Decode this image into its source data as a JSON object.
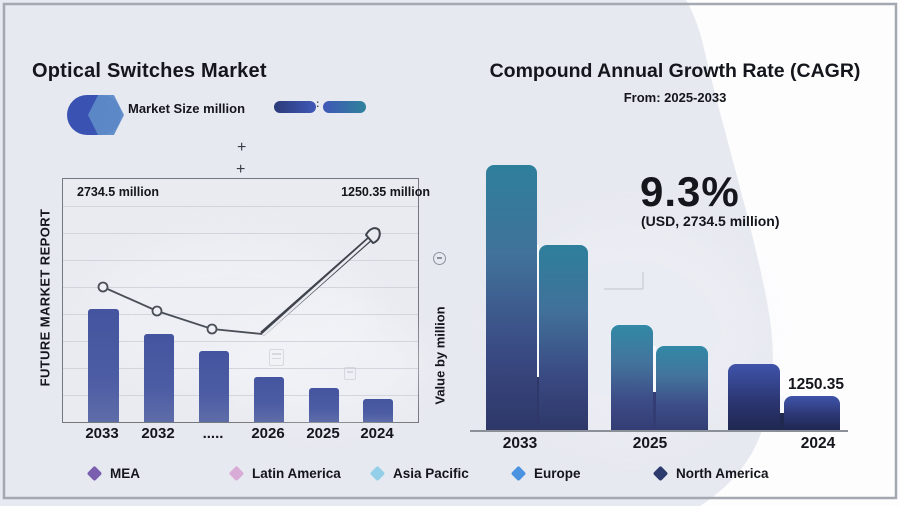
{
  "page": {
    "background_color": "#e7e9f0",
    "panel_background": "#e9ebf1",
    "text_color": "#14161c"
  },
  "left_section": {
    "title": "Optical Switches Market",
    "legend_label": "Market Size million",
    "pill_separator": ":",
    "plus_mark": "+",
    "side_label": "FUTURE MARKET REPORT",
    "value_left": "2734.5 million",
    "value_right": "1250.35 million"
  },
  "right_section": {
    "title": "Compound Annual Growth Rate (CAGR)",
    "subtitle": "From: 2025-2033",
    "cagr_value": "9.3%",
    "cagr_note": "(USD, 2734.5 million)",
    "axis_label": "Value by million",
    "annotation_value": "1250.35"
  },
  "chart_data": [
    {
      "type": "bar",
      "title": "Optical Switches Market size by year (axis unlabeled, heights estimated 0-100)",
      "categories": [
        "2033",
        "2032",
        ".....",
        "2026",
        "2025",
        "2024"
      ],
      "values": [
        100,
        78,
        63,
        40,
        30,
        20
      ],
      "annotations": [
        "2734.5 million",
        "1250.35 million"
      ],
      "ylabel": "",
      "grid": true,
      "trendline": "descending markers over 2033-2026 then arrow rising to top-right",
      "bar_color_top": "#44549e",
      "bar_color_bottom": "#5e6ca8"
    },
    {
      "type": "bar",
      "title": "CAGR comparison (heights estimated 0-100, paired bars per year)",
      "categories": [
        "2033",
        "2025",
        "2024"
      ],
      "series": [
        {
          "name": "primary",
          "values": [
            100,
            40,
            25
          ]
        },
        {
          "name": "secondary",
          "values": [
            70,
            32,
            13
          ]
        }
      ],
      "annotations": [
        "1250.35"
      ],
      "ylabel": "Value by million",
      "grid": false,
      "group_colors": [
        "teal",
        "teal2",
        "indigo"
      ],
      "teal_top": "#2e7f9b",
      "navy_bottom": "#2e3768",
      "indigo_top": "#3f54aa",
      "indigo_bottom": "#1f2750"
    }
  ],
  "legend": {
    "items": [
      {
        "label": "MEA",
        "color": "#7a5fae"
      },
      {
        "label": "Latin America",
        "color": "#d9abd7"
      },
      {
        "label": "Asia Pacific",
        "color": "#94cfe9"
      },
      {
        "label": "Europe",
        "color": "#4b93e0"
      },
      {
        "label": "North America",
        "color": "#2d3a6d"
      }
    ]
  },
  "colors": {
    "accent_teal": "#2e7f9b",
    "accent_navy": "#2e3768",
    "accent_indigo": "#3f54aa",
    "accent_blue_bar": "#4a5ba2",
    "frame": "#a3a8b1"
  }
}
